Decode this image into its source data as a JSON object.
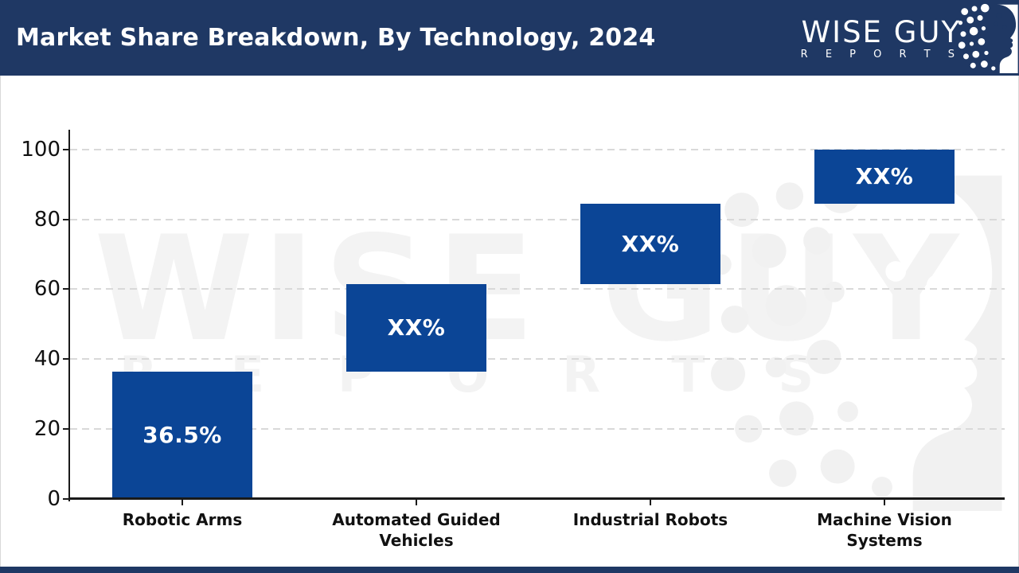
{
  "header": {
    "title": "Market Share Breakdown, By Technology, 2024",
    "logo_line1": "WISE GUY",
    "logo_line2": "R E P O R T S"
  },
  "watermark": {
    "line1": "WISE GUY",
    "line2": "REPORTS"
  },
  "chart_data": {
    "type": "bar",
    "subtype": "waterfall",
    "title": "Market Share Breakdown, By Technology, 2024",
    "categories": [
      "Robotic Arms",
      "Automated Guided Vehicles",
      "Industrial Robots",
      "Machine Vision Systems"
    ],
    "category_lines": [
      [
        "Robotic Arms"
      ],
      [
        "Automated Guided",
        "Vehicles"
      ],
      [
        "Industrial Robots"
      ],
      [
        "Machine Vision",
        "Systems"
      ]
    ],
    "segments": [
      {
        "category": "Robotic Arms",
        "start": 0,
        "end": 36.5,
        "label": "36.5%"
      },
      {
        "category": "Automated Guided Vehicles",
        "start": 36.5,
        "end": 61.5,
        "label": "XX%"
      },
      {
        "category": "Industrial Robots",
        "start": 61.5,
        "end": 84.5,
        "label": "XX%"
      },
      {
        "category": "Machine Vision Systems",
        "start": 84.5,
        "end": 100,
        "label": "XX%"
      }
    ],
    "xlabel": "",
    "ylabel": "",
    "ylim": [
      0,
      100
    ],
    "yticks": [
      0,
      20,
      40,
      60,
      80,
      100
    ],
    "grid": "horizontal-dashed",
    "legend": "none",
    "bar_color": "#0B4596",
    "bar_label_color": "#FFFFFF",
    "axis_color": "#1A1A1A",
    "gridline_color": "#D9D9D9"
  },
  "theme": {
    "header_bg": "#1F3864",
    "footer_bg": "#1F3864",
    "canvas_bg": "#FFFFFF",
    "watermark_color": "#F3F3F3"
  }
}
